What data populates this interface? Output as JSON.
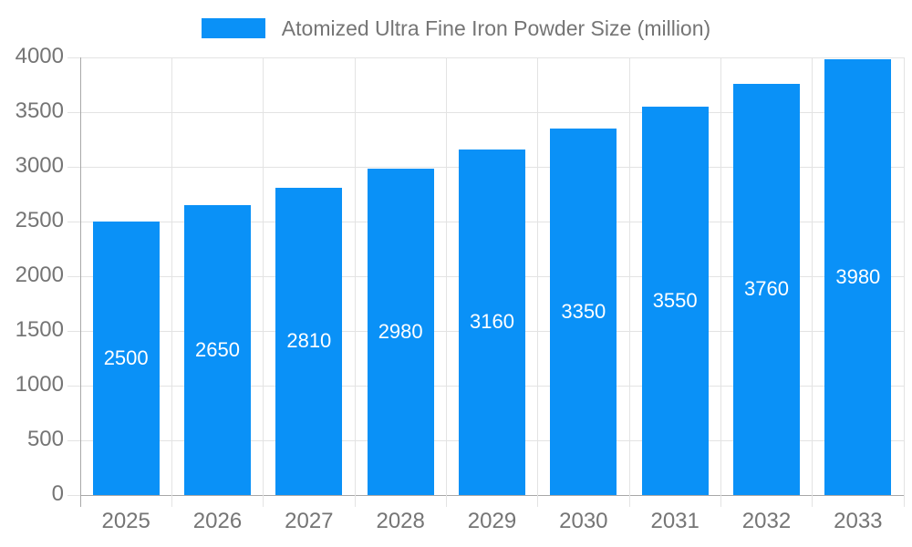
{
  "chart_data": {
    "type": "bar",
    "title": "Atomized Ultra Fine Iron Powder Size (million)",
    "categories": [
      "2025",
      "2026",
      "2027",
      "2028",
      "2029",
      "2030",
      "2031",
      "2032",
      "2033"
    ],
    "values": [
      2500,
      2650,
      2810,
      2980,
      3160,
      3350,
      3550,
      3760,
      3980
    ],
    "series_name": "Atomized Ultra Fine Iron Powder Size (million)",
    "xlabel": "",
    "ylabel": "",
    "ylim": [
      0,
      4000
    ],
    "y_ticks": [
      0,
      500,
      1000,
      1500,
      2000,
      2500,
      3000,
      3500,
      4000
    ],
    "grid": "on",
    "legend_position": "top-center",
    "bar_color": "#0a91f7",
    "bar_label_color": "#ffffff",
    "axis_text_color": "#757575",
    "gridline_color": "#e3e3e3",
    "axis_line_color": "#a8a8a8"
  }
}
